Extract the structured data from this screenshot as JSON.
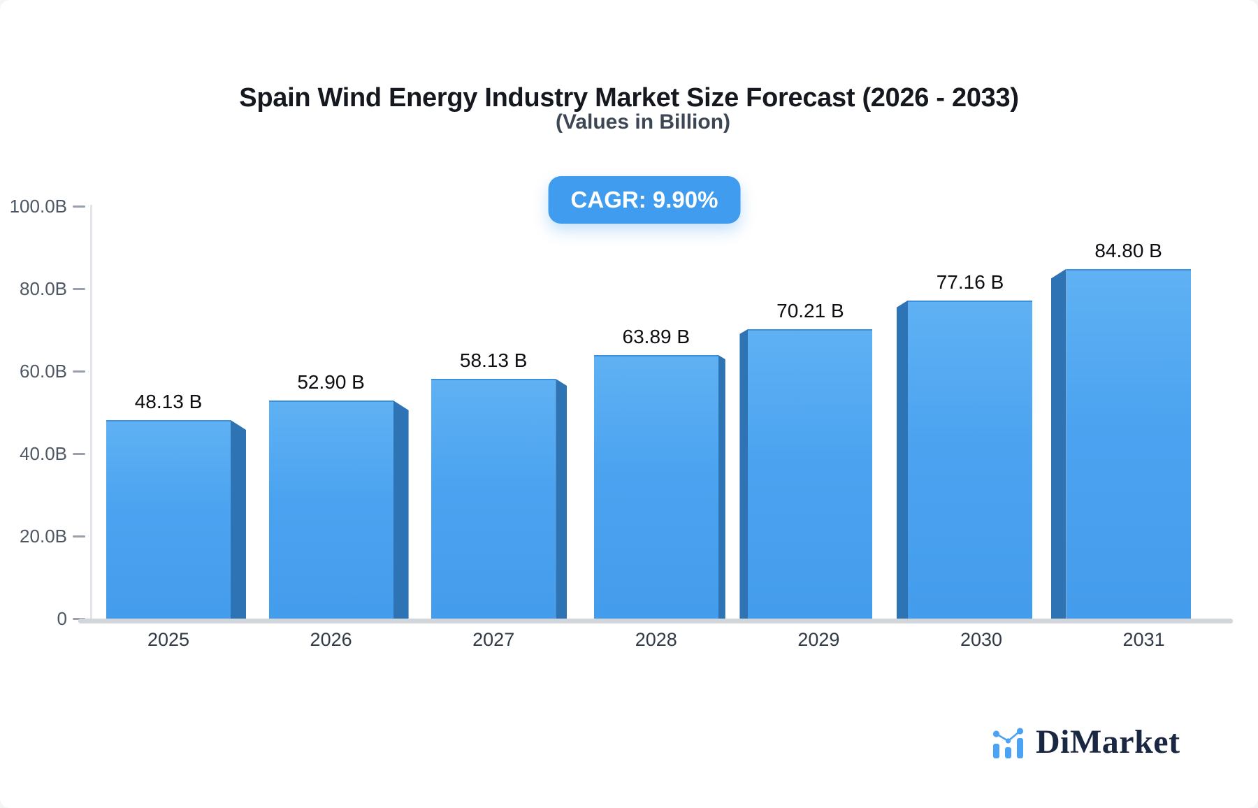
{
  "header": {
    "title": "Spain Wind Energy Industry Market Size Forecast (2026 - 2033)",
    "subtitle": "(Values in Billion)",
    "cagr_label": "CAGR: 9.90%"
  },
  "chart_data": {
    "type": "bar",
    "title": "Spain Wind Energy Industry Market Size Forecast (2026 - 2033)",
    "subtitle": "(Values in Billion)",
    "xlabel": "",
    "ylabel": "",
    "categories": [
      "2025",
      "2026",
      "2027",
      "2028",
      "2029",
      "2030",
      "2031"
    ],
    "values": [
      48.13,
      52.9,
      58.13,
      63.89,
      70.21,
      77.16,
      84.8
    ],
    "bar_labels": [
      "48.13 B",
      "52.90 B",
      "58.13 B",
      "63.89 B",
      "70.21 B",
      "77.16 B",
      "84.80 B"
    ],
    "cagr": "9.90%",
    "ylim": [
      0,
      100
    ],
    "y_ticks": [
      {
        "value": 100,
        "label": "100.0B"
      },
      {
        "value": 80,
        "label": "80.0B"
      },
      {
        "value": 60,
        "label": "60.0B"
      },
      {
        "value": 40,
        "label": "40.0B"
      },
      {
        "value": 20,
        "label": "20.0B"
      },
      {
        "value": 0,
        "label": "0"
      }
    ],
    "grid": false,
    "legend": "none",
    "bar_style": "3d-extruded",
    "bar_face_color": "#4BA3F0",
    "bar_side_color": "#2E74B5",
    "accent_color": "#3F9CEE"
  },
  "branding": {
    "name": "DiMarket",
    "logo_icon": "bar-chart-with-dots-icon",
    "logo_color": "#4AA3F5",
    "text_color": "#1A2742"
  }
}
